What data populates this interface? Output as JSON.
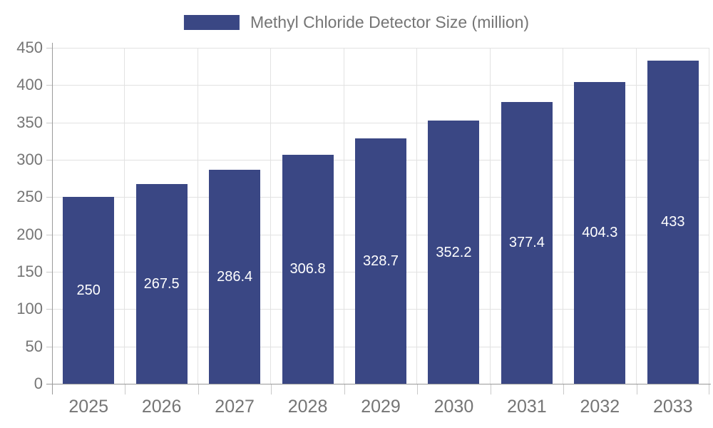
{
  "legend": {
    "label": "Methyl Chloride Detector Size (million)"
  },
  "chart_data": {
    "type": "bar",
    "title": "",
    "xlabel": "",
    "ylabel": "",
    "series_name": "Methyl Chloride Detector Size (million)",
    "categories": [
      "2025",
      "2026",
      "2027",
      "2028",
      "2029",
      "2030",
      "2031",
      "2032",
      "2033"
    ],
    "values": [
      250,
      267.5,
      286.4,
      306.8,
      328.7,
      352.2,
      377.4,
      404.3,
      433
    ],
    "bar_labels": [
      "250",
      "267.5",
      "286.4",
      "306.8",
      "328.7",
      "352.2",
      "377.4",
      "404.3",
      "433"
    ],
    "ylim": [
      0,
      450
    ],
    "yticks": [
      0,
      50,
      100,
      150,
      200,
      250,
      300,
      350,
      400,
      450
    ],
    "grid": true,
    "legend_position": "top-center"
  },
  "colors": {
    "bar_fill": "#3A4784",
    "grid": "#e2e2e2",
    "axis": "#9a9a9a",
    "tick": "#c9c9c9",
    "label_text": "#757575",
    "bar_label_text": "#ffffff"
  }
}
